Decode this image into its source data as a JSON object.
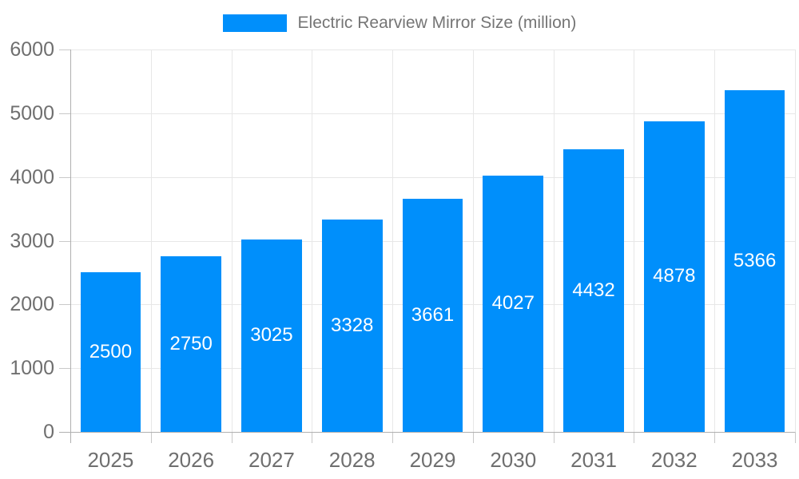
{
  "chart_data": {
    "type": "bar",
    "title": "",
    "categories": [
      "2025",
      "2026",
      "2027",
      "2028",
      "2029",
      "2030",
      "2031",
      "2032",
      "2033"
    ],
    "series": [
      {
        "name": "Electric Rearview Mirror Size (million)",
        "values": [
          2500,
          2750,
          3025,
          3328,
          3661,
          4027,
          4432,
          4878,
          5366
        ]
      }
    ],
    "xlabel": "",
    "ylabel": "",
    "ylim": [
      0,
      6000
    ],
    "ytick_step": 1000,
    "ytick_labels": [
      "0",
      "1000",
      "2000",
      "3000",
      "4000",
      "5000",
      "6000"
    ],
    "grid": "horizontal-and-vertical",
    "legend_position": "top-center",
    "data_labels_position": "inside-center",
    "colors": {
      "bar": "#008FFB",
      "grid_line": "#e7e7e7",
      "axis_line": "#b0b0b0",
      "tick_line": "#c9c9c9",
      "axis_label_text": "#6f6f6f",
      "legend_text": "#757575",
      "data_label_text": "#ffffff",
      "background": "#ffffff"
    }
  }
}
